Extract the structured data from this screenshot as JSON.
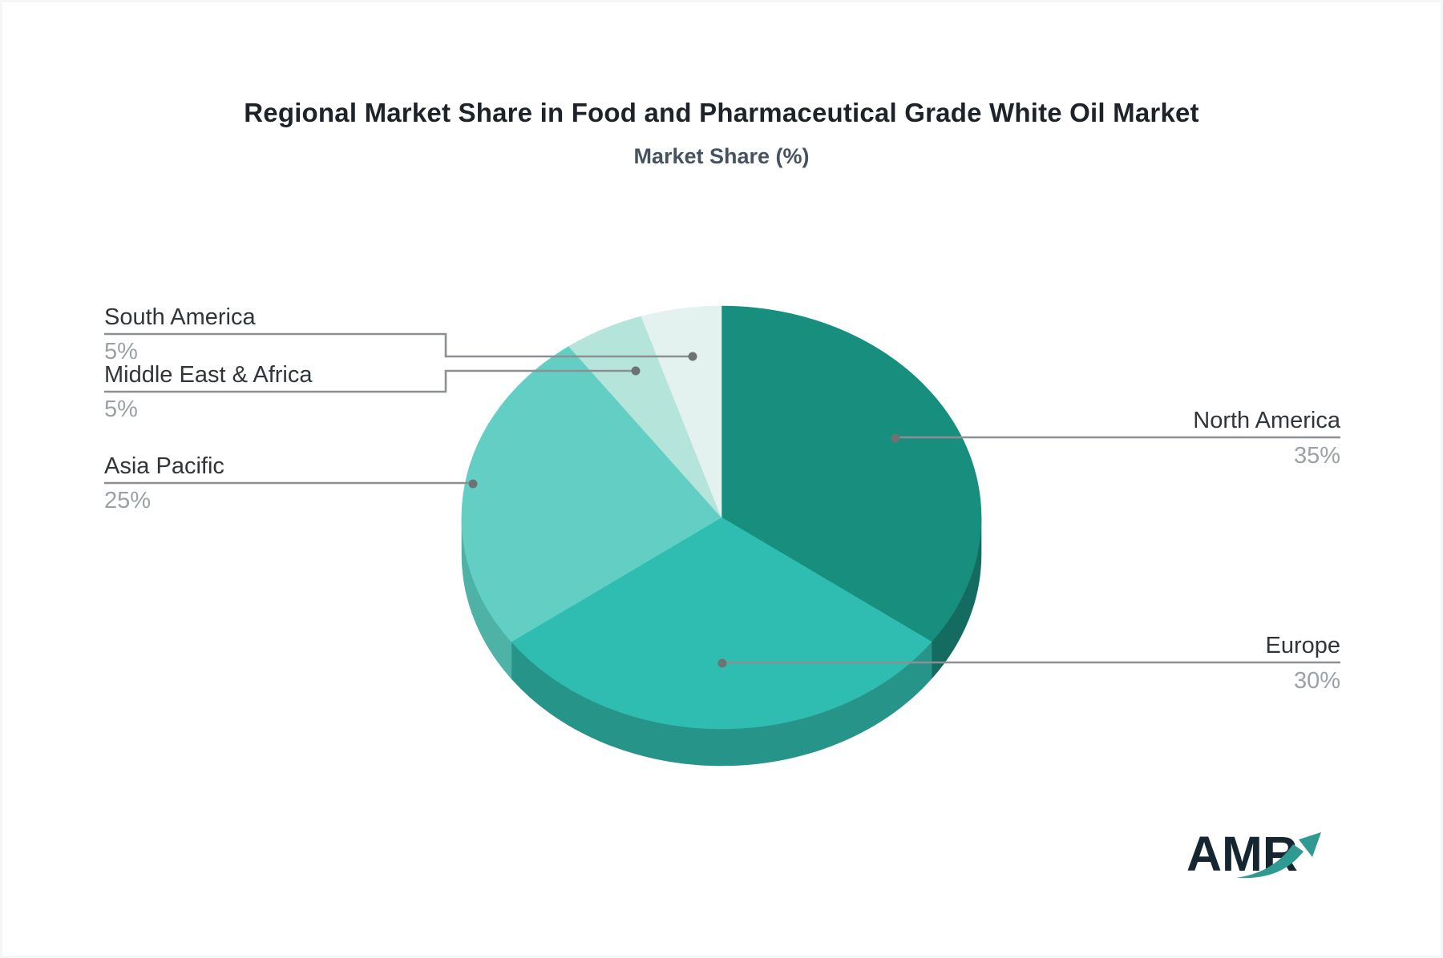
{
  "title": "Regional Market Share in Food and Pharmaceutical Grade White Oil Market",
  "subtitle": "Market Share (%)",
  "logo_text": "AMR",
  "colors": {
    "leader_line": "#8d9093",
    "leader_dot": "#6e7275",
    "title_text": "#1d2328",
    "subtitle_text": "#46535e",
    "label_text": "#30353a",
    "value_text": "#9ba1a5",
    "logo_text": "#152631",
    "logo_arrow": "#2f9a91"
  },
  "chart_data": {
    "type": "pie",
    "title": "Regional Market Share in Food and Pharmaceutical Grade White Oil Market",
    "subtitle": "Market Share (%)",
    "unit": "%",
    "effect": "3d",
    "direction": "clockwise",
    "start_angle_deg": 0,
    "legend_position": "none",
    "label_style": "callout-with-leader-lines",
    "slices": [
      {
        "label": "North America",
        "value": 35,
        "value_text": "35%",
        "color": "#178e7e",
        "side_color": "#146b60"
      },
      {
        "label": "Europe",
        "value": 30,
        "value_text": "30%",
        "color": "#2ebdb0",
        "side_color": "#27948a"
      },
      {
        "label": "Asia Pacific",
        "value": 25,
        "value_text": "25%",
        "color": "#63cfc4",
        "side_color": "#4fb2a6"
      },
      {
        "label": "Middle East & Africa",
        "value": 5,
        "value_text": "5%",
        "color": "#b4e4da",
        "side_color": "#8fc9bf"
      },
      {
        "label": "South America",
        "value": 5,
        "value_text": "5%",
        "color": "#e4f2ef",
        "side_color": "#c2ddd8"
      }
    ]
  }
}
